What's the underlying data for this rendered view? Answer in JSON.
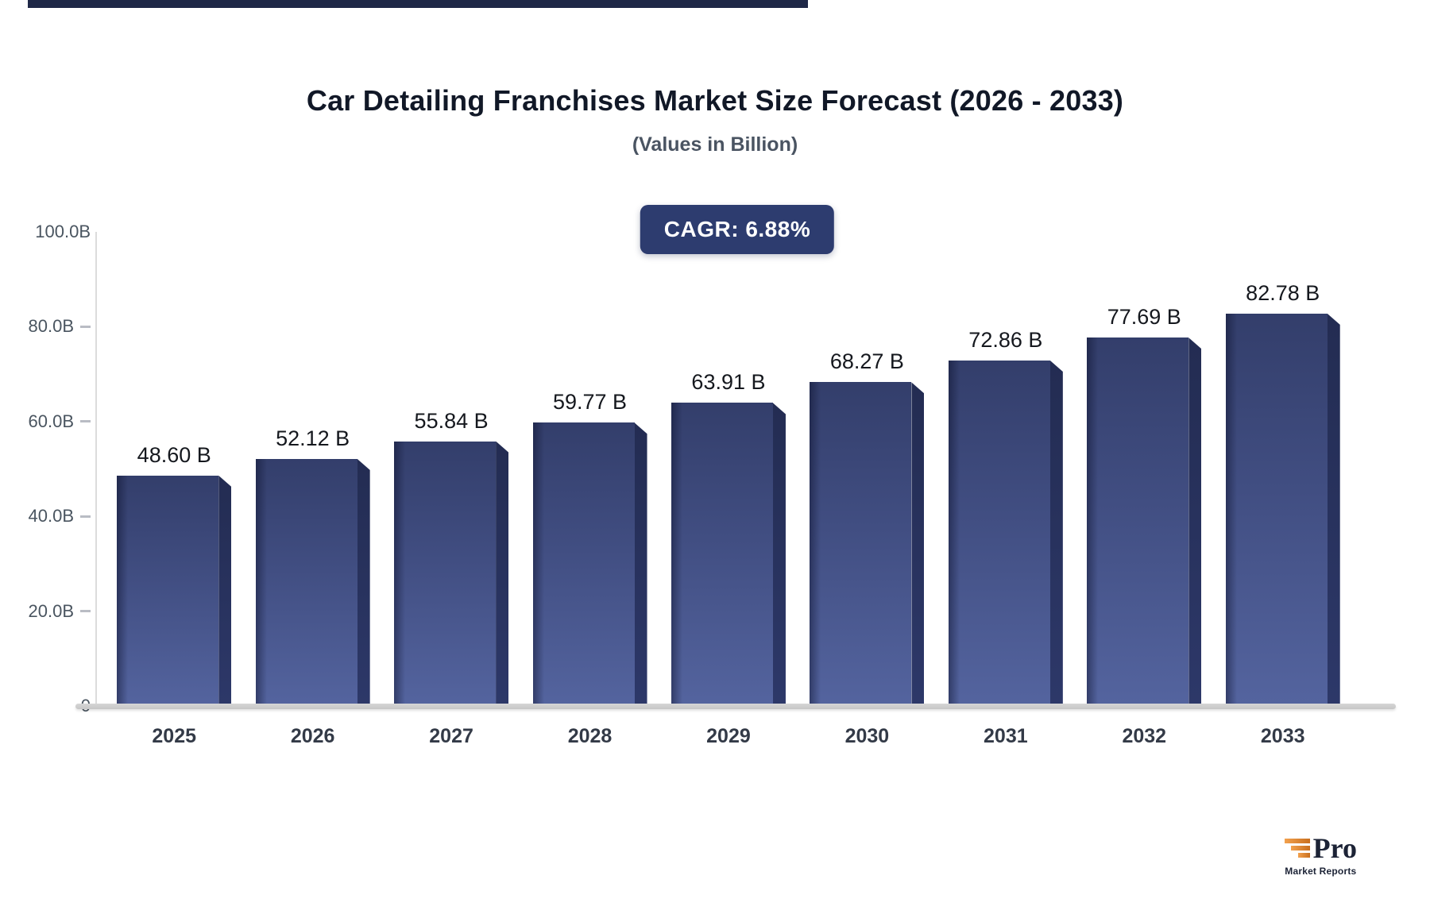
{
  "page": {
    "title": "Car Detailing Franchises Market Size Forecast (2026 - 2033)",
    "subtitle": "(Values in Billion)",
    "cagr_label": "CAGR: 6.88%"
  },
  "chart_data": {
    "type": "bar",
    "title": "Car Detailing Franchises Market Size Forecast (2026 - 2033)",
    "subtitle": "(Values in Billion)",
    "annotation": "CAGR: 6.88%",
    "categories": [
      "2025",
      "2026",
      "2027",
      "2028",
      "2029",
      "2030",
      "2031",
      "2032",
      "2033"
    ],
    "values": [
      48.6,
      52.12,
      55.84,
      59.77,
      63.91,
      68.27,
      72.86,
      77.69,
      82.78
    ],
    "value_labels": [
      "48.60 B",
      "52.12 B",
      "55.84 B",
      "59.77 B",
      "63.91 B",
      "68.27 B",
      "72.86 B",
      "77.69 B",
      "82.78 B"
    ],
    "xlabel": "",
    "ylabel": "",
    "ylim": [
      0,
      100
    ],
    "grid": false,
    "legend": "none",
    "yticks": [
      {
        "value": 100,
        "label": "100.0B",
        "dash": false
      },
      {
        "value": 80,
        "label": "80.0B",
        "dash": true
      },
      {
        "value": 60,
        "label": "60.0B",
        "dash": true
      },
      {
        "value": 40,
        "label": "40.0B",
        "dash": true
      },
      {
        "value": 20,
        "label": "20.0B",
        "dash": true
      },
      {
        "value": 0,
        "label": "0",
        "dash": false
      }
    ],
    "colors": {
      "bar_top": "#333e6b",
      "bar_bottom": "#54649f",
      "bar_side": "#232c52",
      "badge_bg": "#2d3c6f",
      "badge_text": "#ffffff",
      "accent_strip": "#1f2847",
      "logo_orange": "#e8953a"
    }
  },
  "branding": {
    "name": "Pro",
    "subtitle": "Market Reports"
  }
}
